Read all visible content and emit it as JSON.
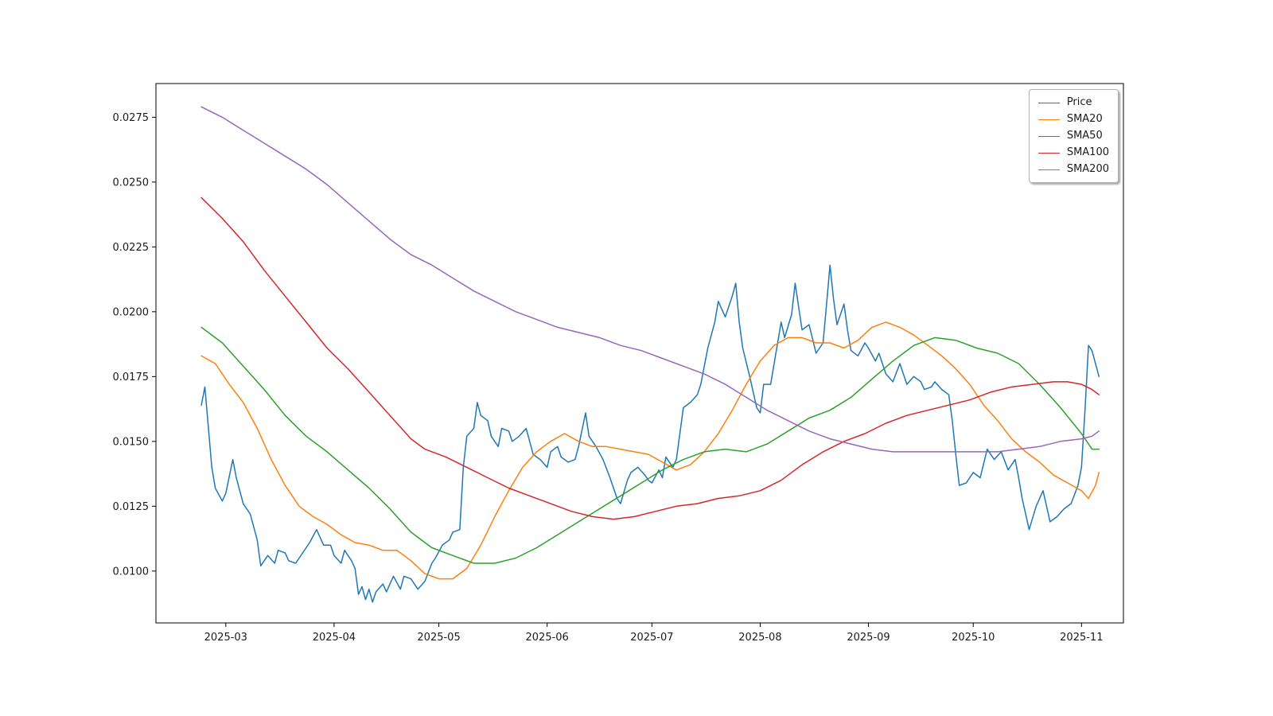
{
  "chart_data": {
    "type": "line",
    "title": "",
    "xlabel": "",
    "ylabel": "",
    "grid": false,
    "legend_position": "upper right",
    "xlim": [
      "2025-02-09",
      "2025-11-13"
    ],
    "ylim": [
      0.008,
      0.0288
    ],
    "x_ticks": [
      "2025-03",
      "2025-04",
      "2025-05",
      "2025-06",
      "2025-07",
      "2025-08",
      "2025-09",
      "2025-10",
      "2025-11"
    ],
    "y_ticks": [
      0.01,
      0.0125,
      0.015,
      0.0175,
      0.02,
      0.0225,
      0.025,
      0.0275
    ],
    "y_tick_labels": [
      "0.0100",
      "0.0125",
      "0.0150",
      "0.0175",
      "0.0200",
      "0.0225",
      "0.0250",
      "0.0275"
    ],
    "series": [
      {
        "name": "Price",
        "color": "#1f77b4",
        "x": [
          "2025-02-22",
          "2025-02-23",
          "2025-02-25",
          "2025-02-26",
          "2025-02-28",
          "2025-03-01",
          "2025-03-03",
          "2025-03-04",
          "2025-03-06",
          "2025-03-08",
          "2025-03-10",
          "2025-03-11",
          "2025-03-13",
          "2025-03-15",
          "2025-03-16",
          "2025-03-18",
          "2025-03-19",
          "2025-03-21",
          "2025-03-23",
          "2025-03-25",
          "2025-03-27",
          "2025-03-29",
          "2025-03-31",
          "2025-04-01",
          "2025-04-03",
          "2025-04-04",
          "2025-04-06",
          "2025-04-07",
          "2025-04-08",
          "2025-04-09",
          "2025-04-10",
          "2025-04-11",
          "2025-04-12",
          "2025-04-13",
          "2025-04-15",
          "2025-04-16",
          "2025-04-18",
          "2025-04-20",
          "2025-04-21",
          "2025-04-23",
          "2025-04-25",
          "2025-04-27",
          "2025-04-29",
          "2025-04-30",
          "2025-05-02",
          "2025-05-04",
          "2025-05-05",
          "2025-05-07",
          "2025-05-08",
          "2025-05-09",
          "2025-05-11",
          "2025-05-12",
          "2025-05-13",
          "2025-05-15",
          "2025-05-16",
          "2025-05-18",
          "2025-05-19",
          "2025-05-21",
          "2025-05-22",
          "2025-05-24",
          "2025-05-26",
          "2025-05-28",
          "2025-05-30",
          "2025-06-01",
          "2025-06-02",
          "2025-06-04",
          "2025-06-05",
          "2025-06-07",
          "2025-06-09",
          "2025-06-10",
          "2025-06-12",
          "2025-06-13",
          "2025-06-15",
          "2025-06-17",
          "2025-06-19",
          "2025-06-21",
          "2025-06-22",
          "2025-06-24",
          "2025-06-25",
          "2025-06-27",
          "2025-06-29",
          "2025-06-30",
          "2025-07-01",
          "2025-07-03",
          "2025-07-04",
          "2025-07-05",
          "2025-07-07",
          "2025-07-08",
          "2025-07-10",
          "2025-07-12",
          "2025-07-14",
          "2025-07-15",
          "2025-07-17",
          "2025-07-19",
          "2025-07-20",
          "2025-07-22",
          "2025-07-24",
          "2025-07-25",
          "2025-07-26",
          "2025-07-27",
          "2025-07-29",
          "2025-07-31",
          "2025-08-01",
          "2025-08-02",
          "2025-08-04",
          "2025-08-05",
          "2025-08-07",
          "2025-08-08",
          "2025-08-10",
          "2025-08-11",
          "2025-08-12",
          "2025-08-13",
          "2025-08-15",
          "2025-08-17",
          "2025-08-19",
          "2025-08-20",
          "2025-08-21",
          "2025-08-22",
          "2025-08-23",
          "2025-08-25",
          "2025-08-26",
          "2025-08-27",
          "2025-08-29",
          "2025-08-31",
          "2025-09-01",
          "2025-09-03",
          "2025-09-04",
          "2025-09-06",
          "2025-09-08",
          "2025-09-10",
          "2025-09-12",
          "2025-09-14",
          "2025-09-16",
          "2025-09-17",
          "2025-09-19",
          "2025-09-20",
          "2025-09-22",
          "2025-09-24",
          "2025-09-25",
          "2025-09-26",
          "2025-09-27",
          "2025-09-29",
          "2025-09-30",
          "2025-10-01",
          "2025-10-03",
          "2025-10-05",
          "2025-10-07",
          "2025-10-09",
          "2025-10-11",
          "2025-10-13",
          "2025-10-14",
          "2025-10-15",
          "2025-10-17",
          "2025-10-19",
          "2025-10-21",
          "2025-10-23",
          "2025-10-25",
          "2025-10-27",
          "2025-10-29",
          "2025-10-31",
          "2025-11-01",
          "2025-11-02",
          "2025-11-03",
          "2025-11-04",
          "2025-11-05",
          "2025-11-06"
        ],
        "y": [
          0.0164,
          0.0171,
          0.014,
          0.0132,
          0.0127,
          0.013,
          0.0143,
          0.0136,
          0.0126,
          0.0122,
          0.0112,
          0.0102,
          0.0106,
          0.0103,
          0.0108,
          0.0107,
          0.0104,
          0.0103,
          0.0107,
          0.0111,
          0.0116,
          0.011,
          0.011,
          0.0106,
          0.0103,
          0.0108,
          0.0104,
          0.0101,
          0.0091,
          0.0094,
          0.0089,
          0.0093,
          0.0088,
          0.0092,
          0.0095,
          0.0092,
          0.0098,
          0.0093,
          0.0098,
          0.0097,
          0.0093,
          0.0096,
          0.0103,
          0.0105,
          0.011,
          0.0112,
          0.0115,
          0.0116,
          0.014,
          0.0152,
          0.0155,
          0.0165,
          0.016,
          0.0158,
          0.0152,
          0.0148,
          0.0155,
          0.0154,
          0.015,
          0.0152,
          0.0155,
          0.0145,
          0.0143,
          0.014,
          0.0146,
          0.0148,
          0.0144,
          0.0142,
          0.0143,
          0.0148,
          0.0161,
          0.0152,
          0.0148,
          0.0143,
          0.0136,
          0.0128,
          0.0126,
          0.0135,
          0.0138,
          0.014,
          0.0137,
          0.0135,
          0.0134,
          0.0139,
          0.0136,
          0.0144,
          0.014,
          0.0143,
          0.0163,
          0.0165,
          0.0168,
          0.0172,
          0.0186,
          0.0196,
          0.0204,
          0.0198,
          0.0206,
          0.0211,
          0.0196,
          0.0186,
          0.0175,
          0.0163,
          0.0161,
          0.0172,
          0.0172,
          0.018,
          0.0196,
          0.019,
          0.0199,
          0.0211,
          0.0202,
          0.0193,
          0.0195,
          0.0184,
          0.0188,
          0.0203,
          0.0218,
          0.0205,
          0.0195,
          0.0203,
          0.0193,
          0.0185,
          0.0183,
          0.0188,
          0.0186,
          0.0181,
          0.0184,
          0.0176,
          0.0173,
          0.018,
          0.0172,
          0.0175,
          0.0173,
          0.017,
          0.0171,
          0.0173,
          0.017,
          0.0168,
          0.0158,
          0.0145,
          0.0133,
          0.0134,
          0.0136,
          0.0138,
          0.0136,
          0.0147,
          0.0143,
          0.0146,
          0.0139,
          0.0143,
          0.0136,
          0.0128,
          0.0116,
          0.0125,
          0.0131,
          0.0119,
          0.0121,
          0.0124,
          0.0126,
          0.0133,
          0.014,
          0.0162,
          0.0187,
          0.0185,
          0.018,
          0.0175
        ]
      },
      {
        "name": "SMA20",
        "color": "#ff7f0e",
        "x": [
          "2025-02-22",
          "2025-02-26",
          "2025-03-02",
          "2025-03-06",
          "2025-03-10",
          "2025-03-14",
          "2025-03-18",
          "2025-03-22",
          "2025-03-26",
          "2025-03-30",
          "2025-04-03",
          "2025-04-07",
          "2025-04-11",
          "2025-04-15",
          "2025-04-19",
          "2025-04-23",
          "2025-04-27",
          "2025-05-01",
          "2025-05-05",
          "2025-05-09",
          "2025-05-13",
          "2025-05-17",
          "2025-05-21",
          "2025-05-25",
          "2025-05-29",
          "2025-06-02",
          "2025-06-06",
          "2025-06-10",
          "2025-06-14",
          "2025-06-18",
          "2025-06-22",
          "2025-06-26",
          "2025-06-30",
          "2025-07-04",
          "2025-07-08",
          "2025-07-12",
          "2025-07-16",
          "2025-07-20",
          "2025-07-24",
          "2025-07-28",
          "2025-08-01",
          "2025-08-05",
          "2025-08-09",
          "2025-08-13",
          "2025-08-17",
          "2025-08-21",
          "2025-08-25",
          "2025-08-29",
          "2025-09-02",
          "2025-09-06",
          "2025-09-10",
          "2025-09-14",
          "2025-09-18",
          "2025-09-22",
          "2025-09-26",
          "2025-09-30",
          "2025-10-04",
          "2025-10-08",
          "2025-10-12",
          "2025-10-16",
          "2025-10-20",
          "2025-10-24",
          "2025-10-28",
          "2025-11-01",
          "2025-11-03",
          "2025-11-05",
          "2025-11-06"
        ],
        "y": [
          0.0183,
          0.018,
          0.0172,
          0.0165,
          0.0155,
          0.0143,
          0.0133,
          0.0125,
          0.0121,
          0.0118,
          0.0114,
          0.0111,
          0.011,
          0.0108,
          0.0108,
          0.0104,
          0.0099,
          0.0097,
          0.0097,
          0.0101,
          0.011,
          0.0121,
          0.0131,
          0.014,
          0.0146,
          0.015,
          0.0153,
          0.015,
          0.0148,
          0.0148,
          0.0147,
          0.0146,
          0.0145,
          0.0142,
          0.0139,
          0.0141,
          0.0146,
          0.0153,
          0.0162,
          0.0172,
          0.0181,
          0.0187,
          0.019,
          0.019,
          0.0188,
          0.0188,
          0.0186,
          0.0189,
          0.0194,
          0.0196,
          0.0194,
          0.0191,
          0.0187,
          0.0183,
          0.0178,
          0.0172,
          0.0164,
          0.0158,
          0.0151,
          0.0146,
          0.0142,
          0.0137,
          0.0134,
          0.0131,
          0.0128,
          0.0133,
          0.0138
        ]
      },
      {
        "name": "SMA50",
        "color": "#2ca02c",
        "x": [
          "2025-02-22",
          "2025-02-28",
          "2025-03-06",
          "2025-03-12",
          "2025-03-18",
          "2025-03-24",
          "2025-03-30",
          "2025-04-05",
          "2025-04-11",
          "2025-04-17",
          "2025-04-23",
          "2025-04-29",
          "2025-05-05",
          "2025-05-11",
          "2025-05-17",
          "2025-05-23",
          "2025-05-29",
          "2025-06-04",
          "2025-06-10",
          "2025-06-16",
          "2025-06-22",
          "2025-06-28",
          "2025-07-04",
          "2025-07-10",
          "2025-07-16",
          "2025-07-22",
          "2025-07-28",
          "2025-08-03",
          "2025-08-09",
          "2025-08-15",
          "2025-08-21",
          "2025-08-27",
          "2025-09-02",
          "2025-09-08",
          "2025-09-14",
          "2025-09-20",
          "2025-09-26",
          "2025-10-02",
          "2025-10-08",
          "2025-10-14",
          "2025-10-20",
          "2025-10-26",
          "2025-11-01",
          "2025-11-04",
          "2025-11-06"
        ],
        "y": [
          0.0194,
          0.0188,
          0.0179,
          0.017,
          0.016,
          0.0152,
          0.0146,
          0.0139,
          0.0132,
          0.0124,
          0.0115,
          0.0109,
          0.0106,
          0.0103,
          0.0103,
          0.0105,
          0.0109,
          0.0114,
          0.0119,
          0.0124,
          0.0129,
          0.0134,
          0.0139,
          0.0143,
          0.0146,
          0.0147,
          0.0146,
          0.0149,
          0.0154,
          0.0159,
          0.0162,
          0.0167,
          0.0174,
          0.0181,
          0.0187,
          0.019,
          0.0189,
          0.0186,
          0.0184,
          0.018,
          0.0172,
          0.0163,
          0.0153,
          0.0147,
          0.0147
        ]
      },
      {
        "name": "SMA100",
        "color": "#d62728",
        "x": [
          "2025-02-22",
          "2025-02-28",
          "2025-03-06",
          "2025-03-12",
          "2025-03-18",
          "2025-03-24",
          "2025-03-30",
          "2025-04-05",
          "2025-04-11",
          "2025-04-17",
          "2025-04-23",
          "2025-04-27",
          "2025-05-03",
          "2025-05-09",
          "2025-05-15",
          "2025-05-21",
          "2025-05-27",
          "2025-06-02",
          "2025-06-08",
          "2025-06-14",
          "2025-06-20",
          "2025-06-26",
          "2025-07-02",
          "2025-07-08",
          "2025-07-14",
          "2025-07-20",
          "2025-07-26",
          "2025-08-01",
          "2025-08-07",
          "2025-08-13",
          "2025-08-19",
          "2025-08-25",
          "2025-08-31",
          "2025-09-06",
          "2025-09-12",
          "2025-09-18",
          "2025-09-24",
          "2025-09-30",
          "2025-10-06",
          "2025-10-12",
          "2025-10-18",
          "2025-10-24",
          "2025-10-28",
          "2025-11-01",
          "2025-11-04",
          "2025-11-06"
        ],
        "y": [
          0.0244,
          0.0236,
          0.0227,
          0.0216,
          0.0206,
          0.0196,
          0.0186,
          0.0178,
          0.0169,
          0.016,
          0.0151,
          0.0147,
          0.0144,
          0.014,
          0.0136,
          0.0132,
          0.0129,
          0.0126,
          0.0123,
          0.0121,
          0.012,
          0.0121,
          0.0123,
          0.0125,
          0.0126,
          0.0128,
          0.0129,
          0.0131,
          0.0135,
          0.0141,
          0.0146,
          0.015,
          0.0153,
          0.0157,
          0.016,
          0.0162,
          0.0164,
          0.0166,
          0.0169,
          0.0171,
          0.0172,
          0.0173,
          0.0173,
          0.0172,
          0.017,
          0.0168
        ]
      },
      {
        "name": "SMA200",
        "color": "#9467bd",
        "x": [
          "2025-02-22",
          "2025-02-28",
          "2025-03-06",
          "2025-03-12",
          "2025-03-18",
          "2025-03-24",
          "2025-03-30",
          "2025-04-05",
          "2025-04-11",
          "2025-04-17",
          "2025-04-23",
          "2025-04-29",
          "2025-05-05",
          "2025-05-11",
          "2025-05-17",
          "2025-05-23",
          "2025-05-29",
          "2025-06-04",
          "2025-06-10",
          "2025-06-16",
          "2025-06-22",
          "2025-06-28",
          "2025-07-04",
          "2025-07-10",
          "2025-07-16",
          "2025-07-22",
          "2025-07-28",
          "2025-08-03",
          "2025-08-09",
          "2025-08-15",
          "2025-08-21",
          "2025-08-27",
          "2025-09-02",
          "2025-09-08",
          "2025-09-14",
          "2025-09-20",
          "2025-09-26",
          "2025-10-02",
          "2025-10-08",
          "2025-10-14",
          "2025-10-20",
          "2025-10-26",
          "2025-11-01",
          "2025-11-04",
          "2025-11-06"
        ],
        "y": [
          0.0279,
          0.0275,
          0.027,
          0.0265,
          0.026,
          0.0255,
          0.0249,
          0.0242,
          0.0235,
          0.0228,
          0.0222,
          0.0218,
          0.0213,
          0.0208,
          0.0204,
          0.02,
          0.0197,
          0.0194,
          0.0192,
          0.019,
          0.0187,
          0.0185,
          0.0182,
          0.0179,
          0.0176,
          0.0172,
          0.0167,
          0.0162,
          0.0158,
          0.0154,
          0.0151,
          0.0149,
          0.0147,
          0.0146,
          0.0146,
          0.0146,
          0.0146,
          0.0146,
          0.0146,
          0.0147,
          0.0148,
          0.015,
          0.0151,
          0.0152,
          0.0154
        ]
      }
    ]
  }
}
